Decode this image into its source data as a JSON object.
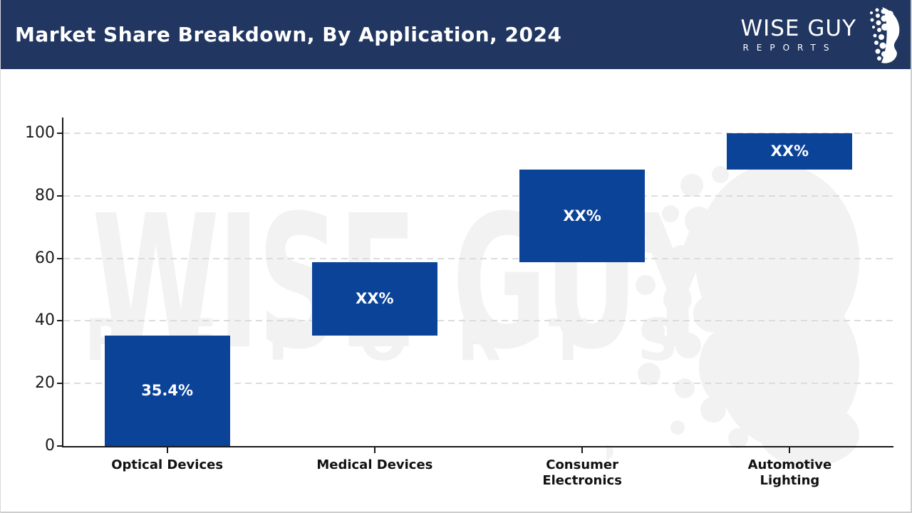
{
  "header": {
    "title": "Market Share Breakdown, By Application, 2024",
    "bg_color": "#213660",
    "logo": {
      "name": "WISE GUY",
      "sub": "REPORTS"
    }
  },
  "watermark": {
    "text": "WISE GUY",
    "sub": "REPORTS"
  },
  "chart_data": {
    "type": "bar",
    "variant": "waterfall",
    "title": "Market Share Breakdown, By Application, 2024",
    "categories": [
      "Optical Devices",
      "Medical Devices",
      "Consumer Electronics",
      "Automotive Lighting"
    ],
    "series": [
      {
        "name": "Market share (%)",
        "segments": [
          {
            "category": "Optical Devices",
            "start": 0,
            "end": 35.4,
            "label": "35.4%"
          },
          {
            "category": "Medical Devices",
            "start": 35.4,
            "end": 58.8,
            "label": "XX%"
          },
          {
            "category": "Consumer Electronics",
            "start": 58.8,
            "end": 88.4,
            "label": "XX%"
          },
          {
            "category": "Automotive Lighting",
            "start": 88.4,
            "end": 100,
            "label": "XX%"
          }
        ]
      }
    ],
    "yticks": [
      0,
      20,
      40,
      60,
      80,
      100
    ],
    "ylim": [
      0,
      105
    ],
    "xlabel": "",
    "ylabel": "",
    "grid": {
      "horizontal": true,
      "style": "dashed",
      "color": "#dcdcdc"
    },
    "legend": "none",
    "bar_color": "#0a4398",
    "bar_label_color": "#ffffff",
    "axis_color": "#1a1a1a"
  }
}
